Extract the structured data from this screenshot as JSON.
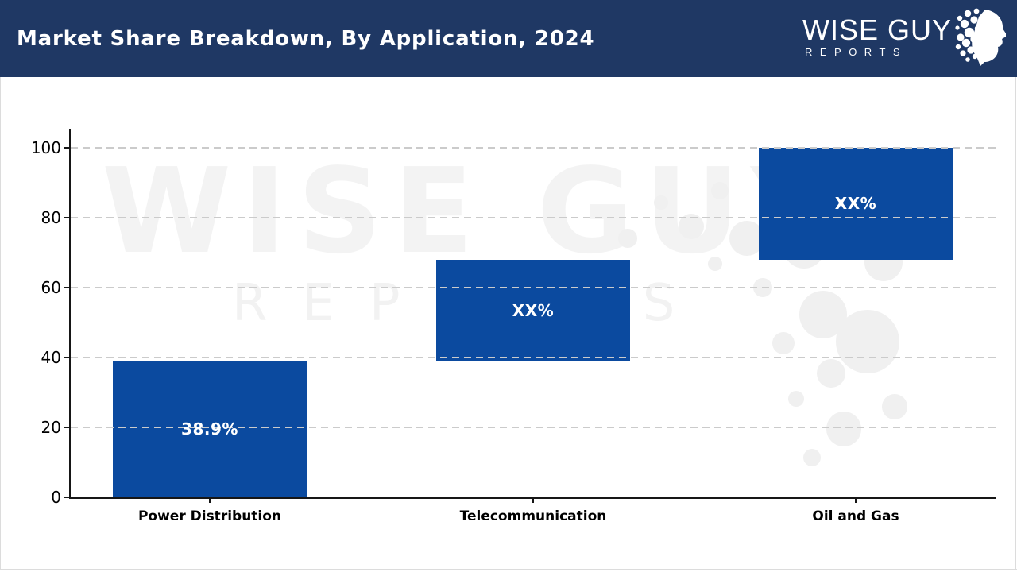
{
  "header": {
    "title": "Market Share Breakdown, By Application, 2024",
    "logo": {
      "line1": "WISE GUY",
      "line2": "REPORTS"
    }
  },
  "watermark": {
    "line1": "WISE GUY",
    "line2": "REPORTS"
  },
  "colors": {
    "header_bg": "#1f3864",
    "bar": "#0b4a9f",
    "bar_label": "#ffffff",
    "gridline": "#cbcbcb",
    "axis": "#161616",
    "watermark": "#f3f3f3"
  },
  "chart_data": {
    "type": "bar",
    "subtype": "waterfall",
    "title": "Market Share Breakdown, By Application, 2024",
    "categories": [
      "Power Distribution",
      "Telecommunication",
      "Oil and Gas"
    ],
    "segments": [
      {
        "category": "Power Distribution",
        "start": 0,
        "end": 38.9,
        "label": "38.9%"
      },
      {
        "category": "Telecommunication",
        "start": 38.9,
        "end": 68.0,
        "label": "XX%"
      },
      {
        "category": "Oil and Gas",
        "start": 68.0,
        "end": 100.0,
        "label": "XX%"
      }
    ],
    "xlabel": "",
    "ylabel": "",
    "yticks": [
      0,
      20,
      40,
      60,
      80,
      100
    ],
    "ylim": [
      0,
      105.2
    ],
    "grid": "dashed-horizontal-over-bars",
    "legend": "none"
  }
}
